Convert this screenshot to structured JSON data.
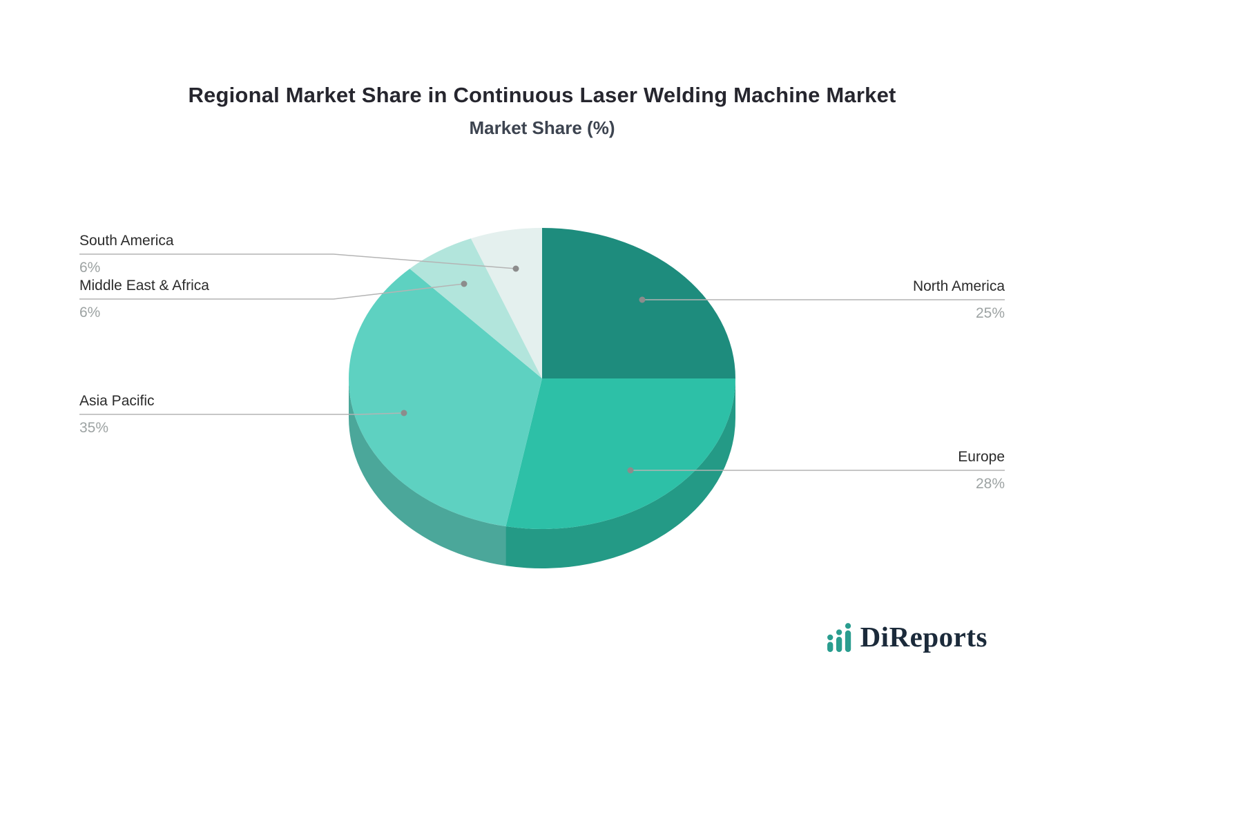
{
  "chart_data": {
    "type": "pie",
    "title": "Regional Market Share in Continuous Laser Welding Machine Market",
    "subtitle": "Market Share (%)",
    "unit": "%",
    "style": "3d",
    "direction": "clockwise",
    "start_angle_deg": 0,
    "legend": "none",
    "slices": [
      {
        "label": "North America",
        "value": 25,
        "display": "25%",
        "color": "#1e8c7d",
        "label_side": "right"
      },
      {
        "label": "Europe",
        "value": 28,
        "display": "28%",
        "color": "#2dc0a7",
        "label_side": "right"
      },
      {
        "label": "Asia Pacific",
        "value": 35,
        "display": "35%",
        "color": "#5ed1c1",
        "label_side": "left"
      },
      {
        "label": "Middle East & Africa",
        "value": 6,
        "display": "6%",
        "color": "#b2e5dc",
        "label_side": "left"
      },
      {
        "label": "South America",
        "value": 6,
        "display": "6%",
        "color": "#e4f0ee",
        "label_side": "left"
      }
    ]
  },
  "logo": {
    "text": "DiReports",
    "icon_color": "#2a9d8f",
    "text_color": "#1b2a3a"
  }
}
